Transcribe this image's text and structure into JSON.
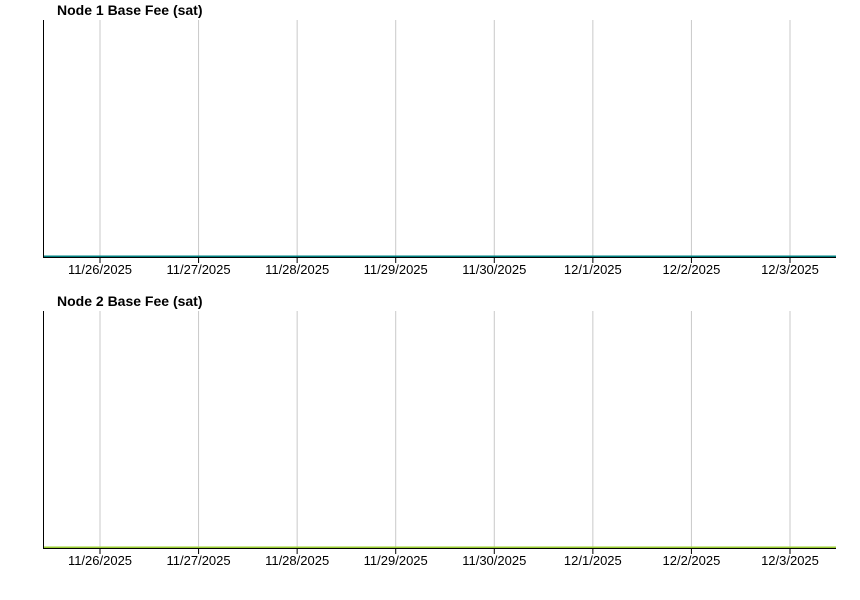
{
  "page": {
    "background_color": "#ffffff",
    "text_color": "#000000",
    "axis_color": "#000000",
    "gridline_color": "#c9c9c9"
  },
  "chart_data": [
    {
      "type": "line",
      "title": "Node 1 Base Fee (sat)",
      "categories": [
        "11/26/2025",
        "11/27/2025",
        "11/28/2025",
        "11/29/2025",
        "11/30/2025",
        "12/1/2025",
        "12/2/2025",
        "12/3/2025"
      ],
      "series": [
        {
          "name": "Node 1 Base Fee (sat)",
          "values": [
            0,
            0,
            0,
            0,
            0,
            0,
            0,
            0
          ],
          "color": "#008080"
        }
      ],
      "xlabel": "",
      "ylabel": "",
      "y_tick_labels": [],
      "grid": "vertical-only",
      "legend_position": "none"
    },
    {
      "type": "line",
      "title": "Node 2 Base Fee (sat)",
      "categories": [
        "11/26/2025",
        "11/27/2025",
        "11/28/2025",
        "11/29/2025",
        "11/30/2025",
        "12/1/2025",
        "12/2/2025",
        "12/3/2025"
      ],
      "series": [
        {
          "name": "Node 2 Base Fee (sat)",
          "values": [
            0,
            0,
            0,
            0,
            0,
            0,
            0,
            0
          ],
          "color": "#9acd32"
        }
      ],
      "xlabel": "",
      "ylabel": "",
      "y_tick_labels": [],
      "grid": "vertical-only",
      "legend_position": "none"
    }
  ]
}
